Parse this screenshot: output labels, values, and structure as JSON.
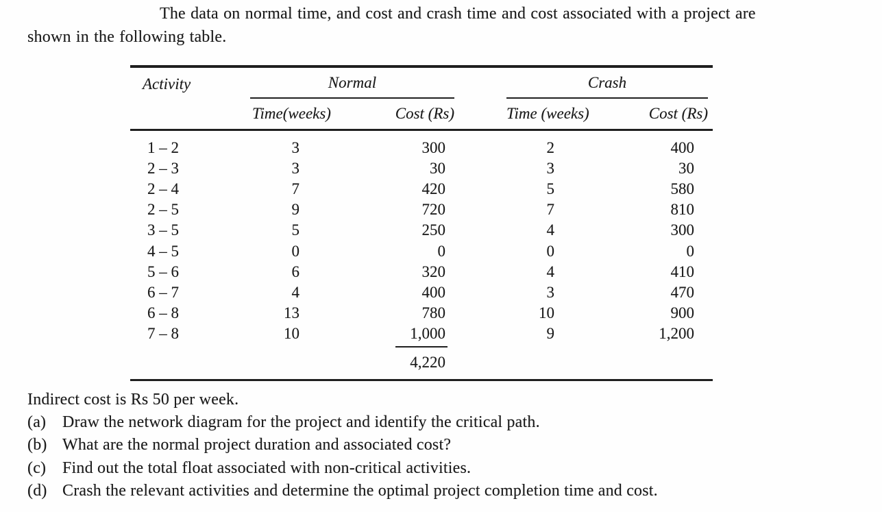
{
  "intro": {
    "lines": [
      "The data on normal time, and cost and crash time and cost associated with a project are",
      "shown in the following table."
    ]
  },
  "table": {
    "col_activity": "Activity",
    "group_normal": "Normal",
    "group_crash": "Crash",
    "sub_normal_time": "Time(weeks)",
    "sub_normal_cost": "Cost (Rs)",
    "sub_crash_time": "Time (weeks)",
    "sub_crash_cost": "Cost (Rs)",
    "rows": [
      [
        "1 – 2",
        "3",
        "300",
        "2",
        "400"
      ],
      [
        "2 – 3",
        "3",
        "30",
        "3",
        "30"
      ],
      [
        "2 – 4",
        "7",
        "420",
        "5",
        "580"
      ],
      [
        "2 – 5",
        "9",
        "720",
        "7",
        "810"
      ],
      [
        "3 – 5",
        "5",
        "250",
        "4",
        "300"
      ],
      [
        "4 – 5",
        "0",
        "0",
        "0",
        "0"
      ],
      [
        "5 – 6",
        "6",
        "320",
        "4",
        "410"
      ],
      [
        "6 – 7",
        "4",
        "400",
        "3",
        "470"
      ],
      [
        "6 – 8",
        "13",
        "780",
        "10",
        "900"
      ],
      [
        "7 – 8",
        "10",
        "1,000",
        "9",
        "1,200"
      ]
    ],
    "total_normal_cost": "4,220"
  },
  "notes": {
    "indirect_cost": "Indirect cost is Rs 50 per week."
  },
  "questions": [
    {
      "label": "(a)",
      "text": "Draw the network diagram for the project and identify the critical path."
    },
    {
      "label": "(b)",
      "text": "What are the normal project duration and associated cost?"
    },
    {
      "label": "(c)",
      "text": "Find out the total float associated with non-critical activities."
    },
    {
      "label": "(d)",
      "text": "Crash the relevant activities and determine the optimal project completion time and cost."
    }
  ]
}
